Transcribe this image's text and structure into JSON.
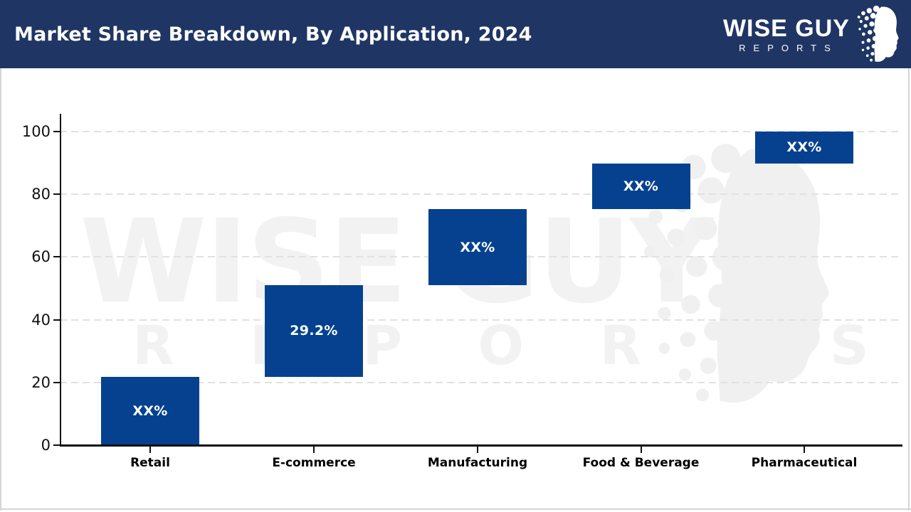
{
  "header": {
    "title": "Market Share Breakdown, By Application, 2024",
    "background_color": "#1f3564",
    "logo": {
      "brand_line1": "WISE GUY",
      "brand_line2": "REPORTS"
    }
  },
  "watermark": {
    "line1": "WISE GUY",
    "line2": "R E P O R T S"
  },
  "chart_data": {
    "type": "bar",
    "subtype": "waterfall",
    "title": "Market Share Breakdown, By Application, 2024",
    "categories": [
      "Retail",
      "E-commerce",
      "Manufacturing",
      "Food & Beverage",
      "Pharmaceutical"
    ],
    "segments": [
      {
        "category": "Retail",
        "start": 0,
        "end": 21.8,
        "label": "XX%"
      },
      {
        "category": "E-commerce",
        "start": 21.8,
        "end": 51.0,
        "label": "29.2%"
      },
      {
        "category": "Manufacturing",
        "start": 51.0,
        "end": 75.3,
        "label": "XX%"
      },
      {
        "category": "Food & Beverage",
        "start": 75.3,
        "end": 89.9,
        "label": "XX%"
      },
      {
        "category": "Pharmaceutical",
        "start": 89.9,
        "end": 100.0,
        "label": "XX%"
      }
    ],
    "yticks": [
      0,
      20,
      40,
      60,
      80,
      100
    ],
    "ylim": [
      0,
      105
    ],
    "xlabel": "",
    "ylabel": "",
    "grid": "horizontal-dashed",
    "legend": "none",
    "bar_color": "#05418f",
    "bar_label_color": "#ffffff",
    "axis_color": "#111111",
    "gridline_color": "#e1e1e1"
  }
}
